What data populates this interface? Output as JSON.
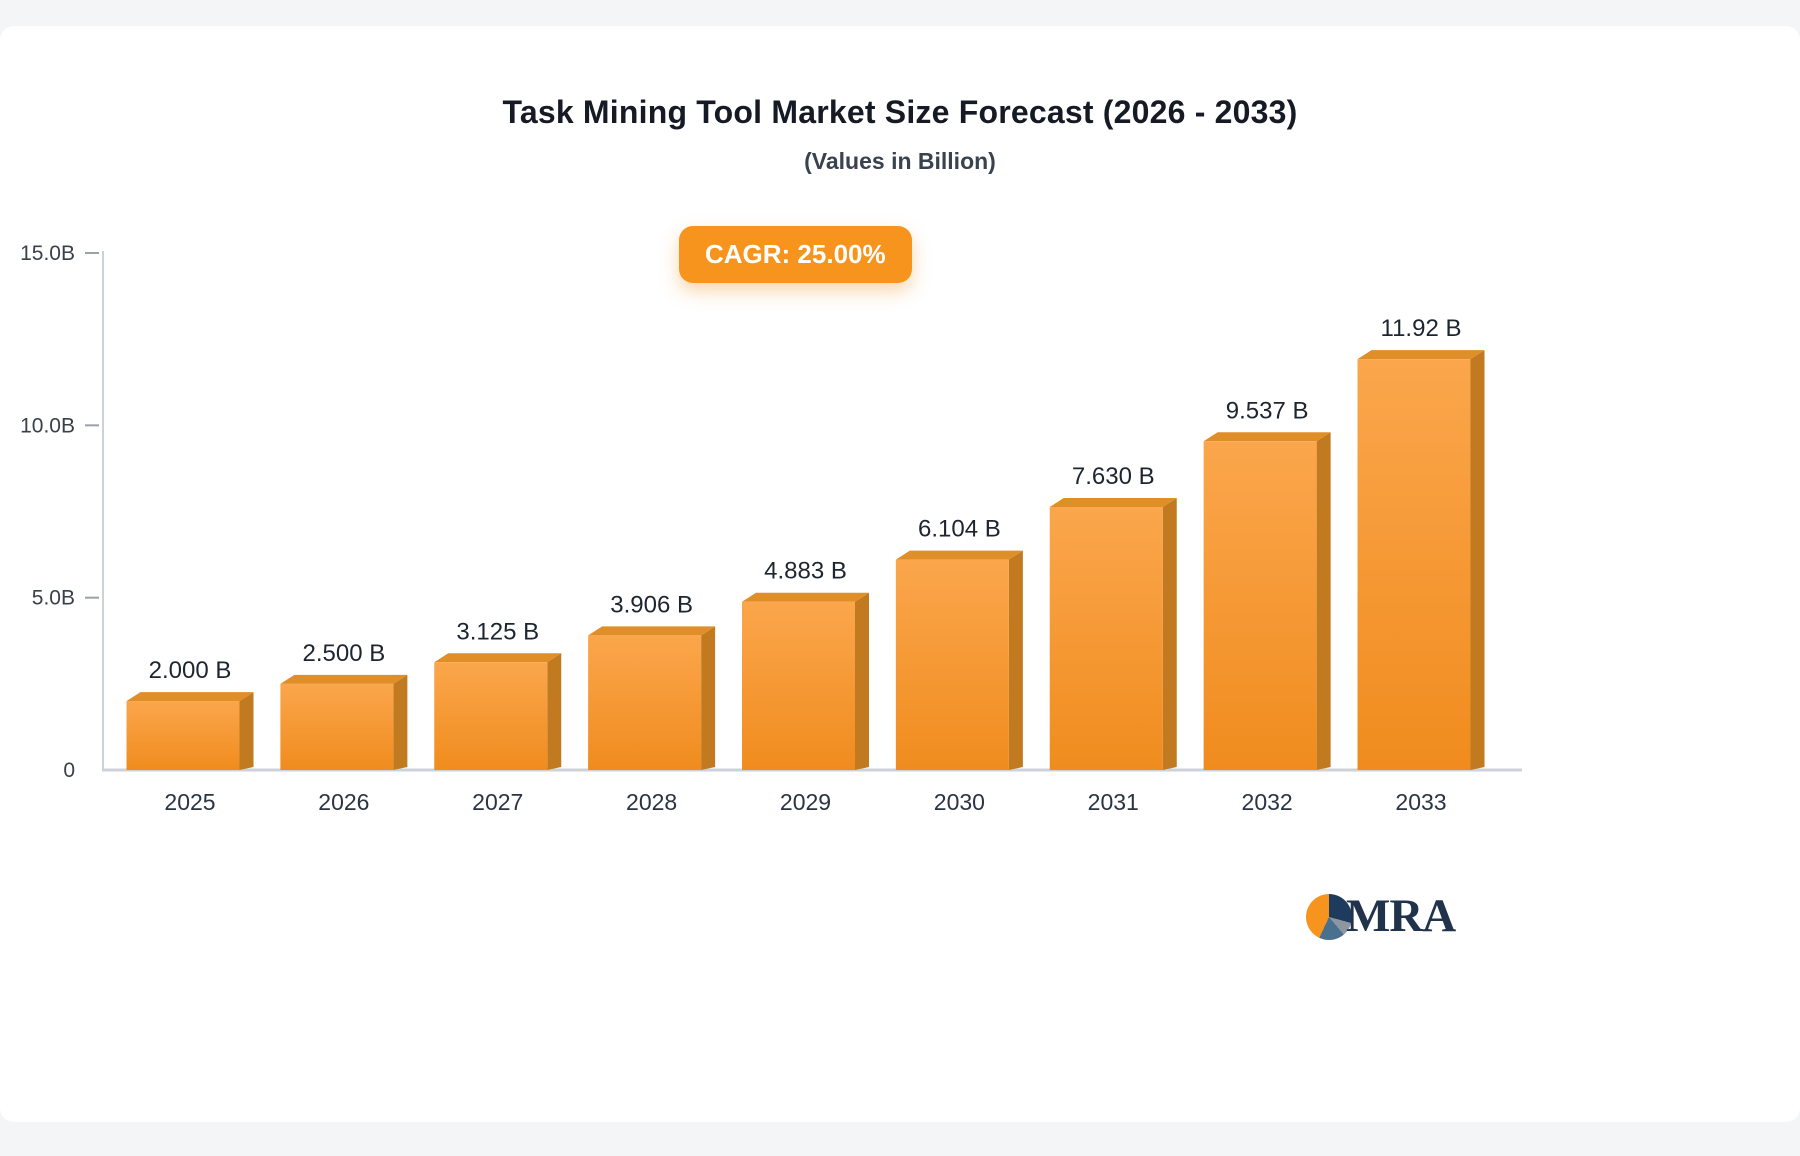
{
  "chart_data": {
    "type": "bar",
    "title": "Task Mining Tool Market Size Forecast (2026 - 2033)",
    "subtitle": "(Values in Billion)",
    "cagr_badge": "CAGR: 25.00%",
    "categories": [
      "2025",
      "2026",
      "2027",
      "2028",
      "2029",
      "2030",
      "2031",
      "2032",
      "2033"
    ],
    "values": [
      2.0,
      2.5,
      3.125,
      3.906,
      4.883,
      6.104,
      7.63,
      9.537,
      11.92
    ],
    "value_labels": [
      "2.000 B",
      "2.500 B",
      "3.125 B",
      "3.906 B",
      "4.883 B",
      "6.104 B",
      "7.630 B",
      "9.537 B",
      "11.92 B"
    ],
    "xlabel": "",
    "ylabel": "",
    "ylim": [
      0,
      15
    ],
    "yticks": [
      {
        "value": 0,
        "label": "0"
      },
      {
        "value": 5,
        "label": "5.0B"
      },
      {
        "value": 10,
        "label": "10.0B"
      },
      {
        "value": 15,
        "label": "15.0B"
      }
    ],
    "grid": false,
    "legend": false,
    "bar_style": "3d-orange"
  },
  "logo": {
    "text": "MRA"
  },
  "colors": {
    "accent": "#F7941E",
    "bar_front_top": "#FBA64C",
    "bar_front_bottom": "#F08C1E",
    "bar_side": "#C17A1F",
    "bar_top": "#E08E28",
    "axis_line": "#CDD2D8",
    "tick": "#9BA1A8"
  }
}
